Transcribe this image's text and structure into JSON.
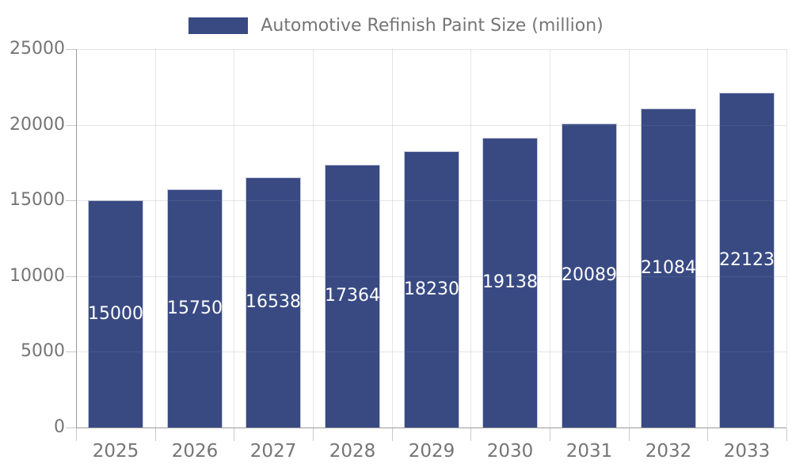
{
  "chart_data": {
    "type": "bar",
    "title": "Automotive Refinish Paint Size (million)",
    "categories": [
      "2025",
      "2026",
      "2027",
      "2028",
      "2029",
      "2030",
      "2031",
      "2032",
      "2033"
    ],
    "series": [
      {
        "name": "Automotive Refinish Paint Size (million)",
        "values": [
          15000,
          15750,
          16538,
          17364,
          18230,
          19138,
          20089,
          21084,
          22123
        ]
      }
    ],
    "bar_labels": [
      "15000",
      "15750",
      "16538",
      "17364",
      "18230",
      "19138",
      "20089",
      "21084",
      "22123"
    ],
    "xlabel": "",
    "ylabel": "",
    "ylim": [
      0,
      25000
    ],
    "yticks": [
      0,
      5000,
      10000,
      15000,
      20000,
      25000
    ],
    "ytick_labels": [
      "0",
      "5000",
      "10000",
      "15000",
      "20000",
      "25000"
    ],
    "grid": true,
    "legend_position": "top-center",
    "colors": {
      "bar_fill": "#394A83",
      "bar_border": "#C6CBDC",
      "bar_label_text": "#FFFFFF",
      "axis_text": "#757575",
      "axis_line": "#9A9A9A",
      "gridline": "#E6E6E6",
      "background": "#FFFFFF"
    }
  }
}
